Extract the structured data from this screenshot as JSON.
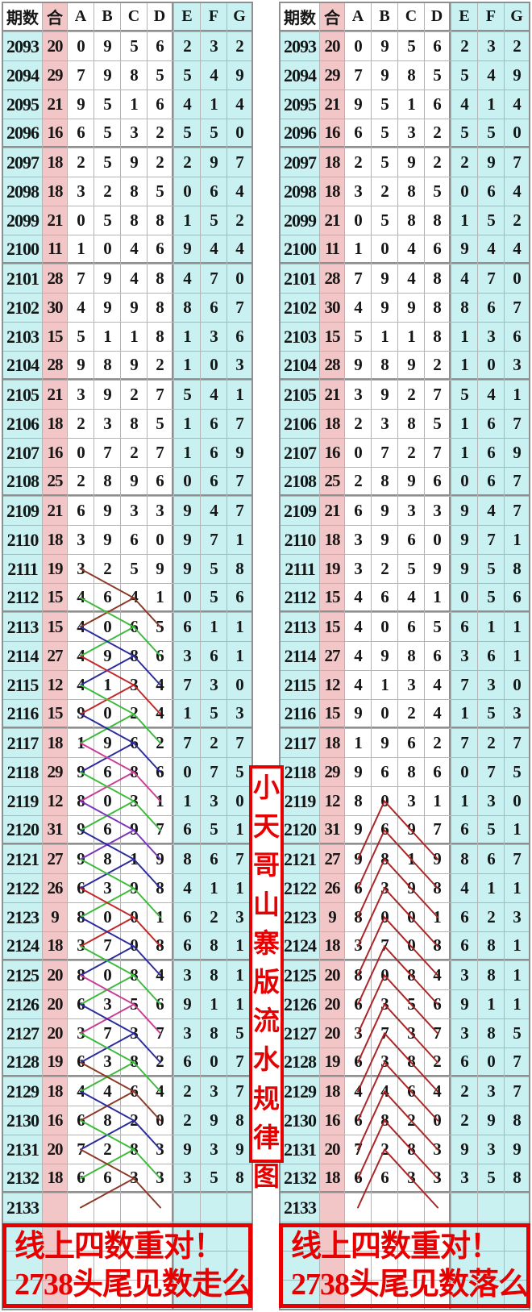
{
  "chart_data": {
    "type": "table",
    "title": "小天哥山寨版流水规律图",
    "columns": [
      "期数",
      "合",
      "A",
      "B",
      "C",
      "D",
      "E",
      "F",
      "G"
    ],
    "rows": [
      [
        2093,
        20,
        0,
        9,
        5,
        6,
        2,
        3,
        2
      ],
      [
        2094,
        29,
        7,
        9,
        8,
        5,
        5,
        4,
        9
      ],
      [
        2095,
        21,
        9,
        5,
        1,
        6,
        4,
        1,
        4
      ],
      [
        2096,
        16,
        6,
        5,
        3,
        2,
        5,
        5,
        0
      ],
      [
        2097,
        18,
        2,
        5,
        9,
        2,
        2,
        9,
        7
      ],
      [
        2098,
        18,
        3,
        2,
        8,
        5,
        0,
        6,
        4
      ],
      [
        2099,
        21,
        0,
        5,
        8,
        8,
        1,
        5,
        2
      ],
      [
        2100,
        11,
        1,
        0,
        4,
        6,
        9,
        4,
        4
      ],
      [
        2101,
        28,
        7,
        9,
        4,
        8,
        4,
        7,
        0
      ],
      [
        2102,
        30,
        4,
        9,
        9,
        8,
        8,
        6,
        7
      ],
      [
        2103,
        15,
        5,
        1,
        1,
        8,
        1,
        3,
        6
      ],
      [
        2104,
        28,
        9,
        8,
        9,
        2,
        1,
        0,
        3
      ],
      [
        2105,
        21,
        3,
        9,
        2,
        7,
        5,
        4,
        1
      ],
      [
        2106,
        18,
        2,
        3,
        8,
        5,
        1,
        6,
        7
      ],
      [
        2107,
        16,
        0,
        7,
        2,
        7,
        1,
        6,
        9
      ],
      [
        2108,
        25,
        2,
        8,
        9,
        6,
        0,
        6,
        7
      ],
      [
        2109,
        21,
        6,
        9,
        3,
        3,
        9,
        4,
        7
      ],
      [
        2110,
        18,
        3,
        9,
        6,
        0,
        9,
        7,
        1
      ],
      [
        2111,
        19,
        3,
        2,
        5,
        9,
        9,
        5,
        8
      ],
      [
        2112,
        15,
        4,
        6,
        4,
        1,
        0,
        5,
        6
      ],
      [
        2113,
        15,
        4,
        0,
        6,
        5,
        6,
        1,
        1
      ],
      [
        2114,
        27,
        4,
        9,
        8,
        6,
        3,
        6,
        1
      ],
      [
        2115,
        12,
        4,
        1,
        3,
        4,
        7,
        3,
        0
      ],
      [
        2116,
        15,
        9,
        0,
        2,
        4,
        1,
        5,
        3
      ],
      [
        2117,
        18,
        1,
        9,
        6,
        2,
        7,
        2,
        7
      ],
      [
        2118,
        29,
        9,
        6,
        8,
        6,
        0,
        7,
        5
      ],
      [
        2119,
        12,
        8,
        0,
        3,
        1,
        1,
        3,
        0
      ],
      [
        2120,
        31,
        9,
        6,
        9,
        7,
        6,
        5,
        1
      ],
      [
        2121,
        27,
        9,
        8,
        1,
        9,
        8,
        6,
        7
      ],
      [
        2122,
        26,
        6,
        3,
        9,
        8,
        4,
        1,
        1
      ],
      [
        2123,
        9,
        8,
        0,
        0,
        1,
        6,
        2,
        3
      ],
      [
        2124,
        18,
        3,
        7,
        0,
        8,
        6,
        8,
        1
      ],
      [
        2125,
        20,
        8,
        0,
        8,
        4,
        3,
        8,
        1
      ],
      [
        2126,
        20,
        6,
        3,
        5,
        6,
        9,
        1,
        1
      ],
      [
        2127,
        20,
        3,
        7,
        3,
        7,
        3,
        8,
        5
      ],
      [
        2128,
        19,
        6,
        3,
        8,
        2,
        6,
        0,
        7
      ],
      [
        2129,
        18,
        4,
        4,
        6,
        4,
        2,
        3,
        7
      ],
      [
        2130,
        16,
        6,
        8,
        2,
        0,
        2,
        9,
        8
      ],
      [
        2131,
        20,
        7,
        2,
        8,
        3,
        9,
        3,
        9
      ],
      [
        2132,
        18,
        6,
        6,
        3,
        3,
        3,
        5,
        8
      ],
      [
        "2133",
        "",
        "",
        "",
        "",
        "",
        "",
        "",
        ""
      ]
    ],
    "tables_shown": 2,
    "row_group_size": 4,
    "left_table_lines": [
      {
        "peak_row": 2112,
        "color": "darkred"
      },
      {
        "peak_row": 2113,
        "color": "green"
      },
      {
        "peak_row": 2114,
        "color": "blue"
      },
      {
        "peak_row": 2115,
        "color": "red"
      },
      {
        "peak_row": 2116,
        "color": "green"
      },
      {
        "peak_row": 2117,
        "color": "blue"
      },
      {
        "peak_row": 2118,
        "color": "magenta"
      },
      {
        "peak_row": 2119,
        "color": "green"
      },
      {
        "peak_row": 2120,
        "color": "purple"
      },
      {
        "peak_row": 2121,
        "color": "blue"
      },
      {
        "peak_row": 2122,
        "color": "green"
      },
      {
        "peak_row": 2123,
        "color": "red"
      },
      {
        "peak_row": 2124,
        "color": "blue"
      },
      {
        "peak_row": 2125,
        "color": "green"
      },
      {
        "peak_row": 2126,
        "color": "magenta"
      },
      {
        "peak_row": 2127,
        "color": "blue"
      },
      {
        "peak_row": 2128,
        "color": "green"
      },
      {
        "peak_row": 2129,
        "color": "darkred"
      },
      {
        "peak_row": 2130,
        "color": "blue"
      },
      {
        "peak_row": 2131,
        "color": "green"
      },
      {
        "peak_row": 2132,
        "color": "darkred"
      }
    ],
    "left_line_shape": "peak at column C of peak_row; segments A(row-1)->C(row)->D(row+1) plus C(row)->A(row+1)",
    "right_table_lines": {
      "color": "chevron_red",
      "peak_rows": [
        2119,
        2120,
        2121,
        2122,
        2123,
        2124,
        2125,
        2126,
        2127,
        2128,
        2129,
        2130,
        2131
      ],
      "shape": "peak at column B of peak_row; legs to A(row+2) and D(row+2)"
    }
  },
  "middle_banner": {
    "text": "小天哥山寨版流水规律图"
  },
  "bottom_left_box": {
    "line1": "线上四数重对！",
    "line2": "2738头尾见数走么"
  },
  "bottom_right_box": {
    "line1": "线上四数重对！",
    "line2": "2738头尾见数落么"
  },
  "colors": {
    "cyan_cell": "#c9f1f2",
    "pink_cell": "#f2c6c6",
    "white_cell": "#ffffff",
    "grid_line": "#b4b4b4",
    "grid_line_thick": "#8f8f8f",
    "banner_red": "#e80000",
    "line_darkred": "#8b3a2a",
    "line_green": "#3dbb3d",
    "line_blue": "#2b2b9e",
    "line_red": "#c22727",
    "line_magenta": "#cb3d96",
    "line_purple": "#7a35bd",
    "line_chevron_red": "#aa2525"
  }
}
